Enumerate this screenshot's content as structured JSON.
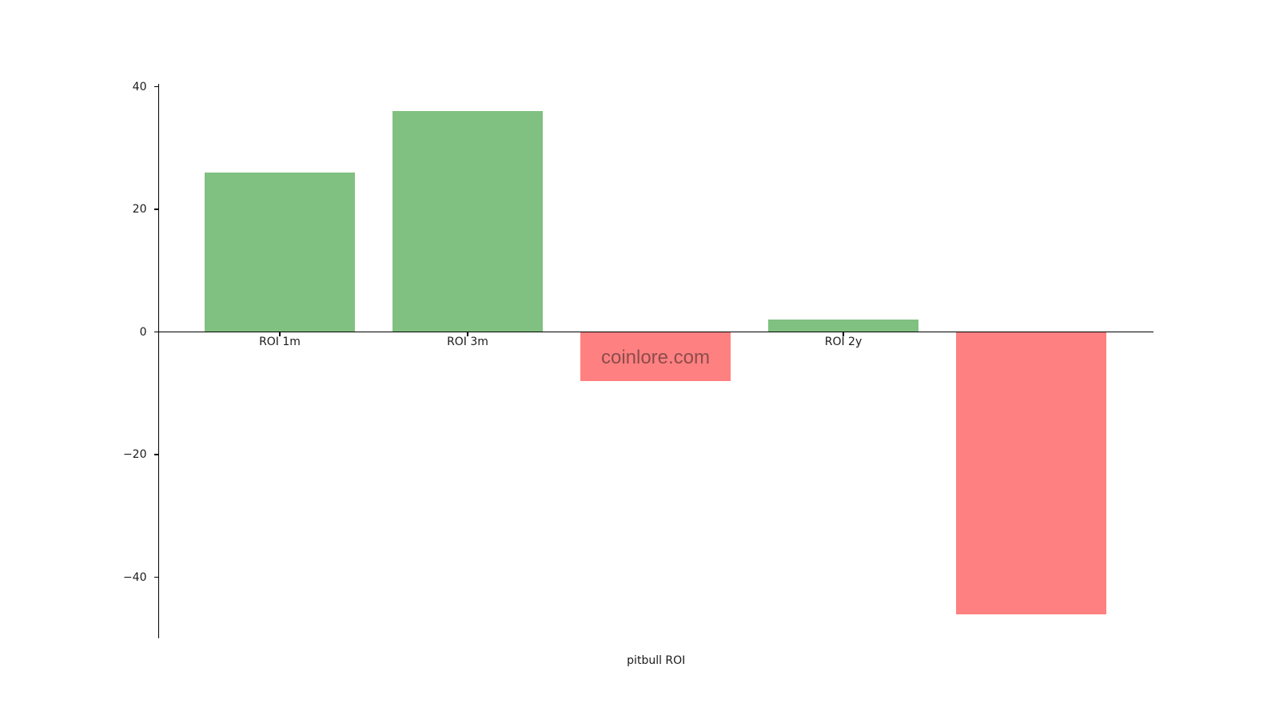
{
  "chart_data": {
    "type": "bar",
    "title": "",
    "xlabel": "pitbull ROI",
    "ylabel": "",
    "categories": [
      "ROI 1m",
      "ROI 3m",
      "",
      "ROI 2y",
      ""
    ],
    "values": [
      26,
      36,
      -8,
      2,
      -46
    ],
    "yticks": [
      40,
      20,
      0,
      -20,
      -40
    ],
    "ytick_labels": [
      "40",
      "20",
      "0",
      "−20",
      "−40"
    ],
    "ylim": [
      -50,
      40.5
    ],
    "grid": false,
    "legend_position": "none",
    "colors": {
      "positive_bar": "#80c080",
      "negative_bar": "#ff8080",
      "axis": "#000000",
      "text": "#1a1a1a",
      "watermark_text": "#8c4c4c"
    },
    "watermark": {
      "text": "coinlore.com"
    }
  }
}
